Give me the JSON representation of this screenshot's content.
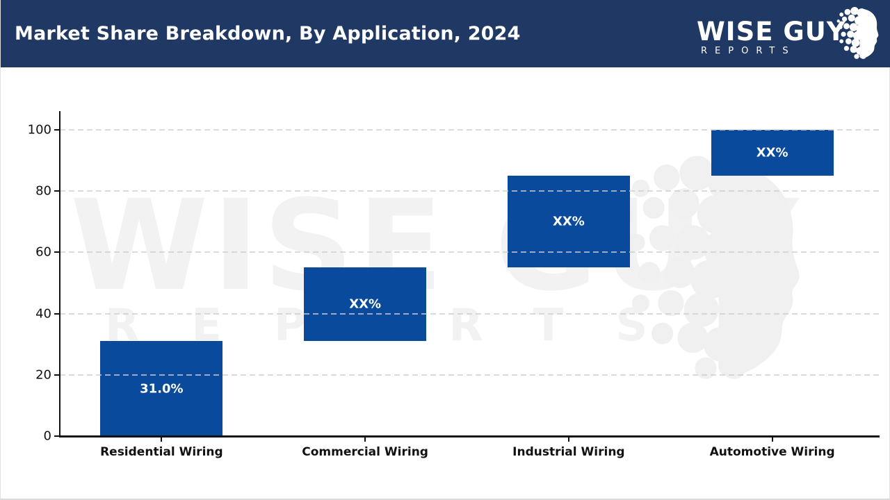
{
  "header": {
    "title": "Market Share Breakdown, By Application, 2024",
    "logo": {
      "line1": "WISE GUY",
      "line2": "REPORTS"
    }
  },
  "watermark": {
    "line1": "WISE GUY",
    "line2": "REPORTS"
  },
  "colors": {
    "header_bg": "#1f3864",
    "bar": "#0a4a9c",
    "bar_label": "#ffffff",
    "axis": "#111111",
    "grid": "#cdcdcd",
    "watermark": "#f2f2f2"
  },
  "chart_data": {
    "type": "bar",
    "subtype": "waterfall",
    "title": "Market Share Breakdown, By Application, 2024",
    "categories": [
      "Residential Wiring",
      "Commercial Wiring",
      "Industrial Wiring",
      "Automotive Wiring"
    ],
    "bars": [
      {
        "category": "Residential Wiring",
        "start": 0,
        "end": 31,
        "value_label": "31.0%"
      },
      {
        "category": "Commercial Wiring",
        "start": 31,
        "end": 55,
        "value_label": "XX%"
      },
      {
        "category": "Industrial Wiring",
        "start": 55,
        "end": 85,
        "value_label": "XX%"
      },
      {
        "category": "Automotive Wiring",
        "start": 85,
        "end": 100,
        "value_label": "XX%"
      }
    ],
    "xlabel": "",
    "ylabel": "",
    "ylim": [
      0,
      100
    ],
    "yticks": [
      0,
      20,
      40,
      60,
      80,
      100
    ],
    "grid": "horizontal-dashed-over-bars",
    "legend": "none"
  }
}
